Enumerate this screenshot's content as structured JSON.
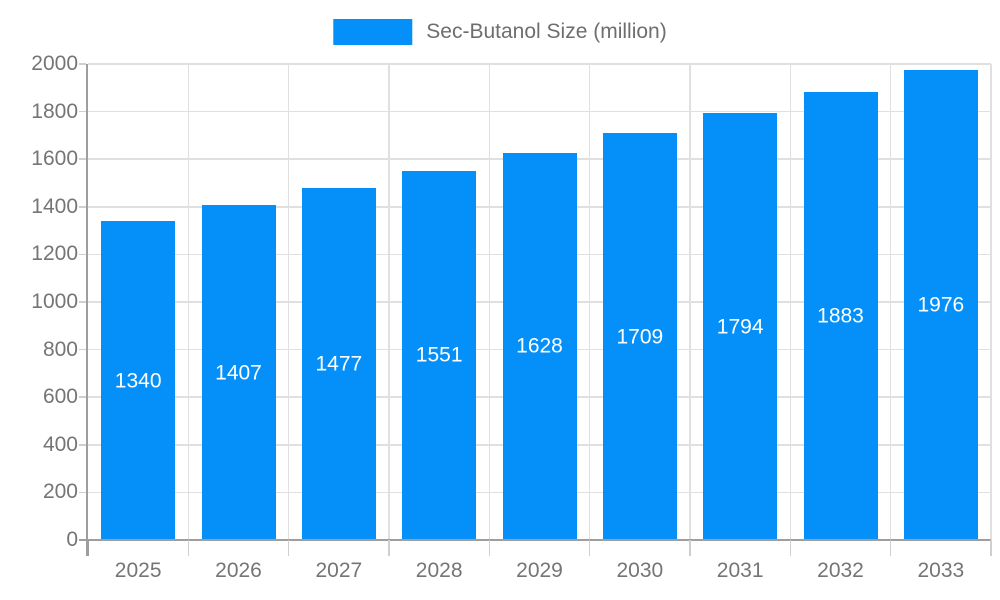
{
  "legend": {
    "label": "Sec-Butanol Size (million)"
  },
  "colors": {
    "bar": "#0490F8",
    "bar_label": "#ffffff",
    "grid": "#e0e0e0",
    "axis": "#9e9e9e",
    "tick": "#cfcfcf",
    "axis_text": "#757575",
    "legend_text": "#6e6e6e",
    "background": "#ffffff"
  },
  "chart_data": {
    "type": "bar",
    "title": "",
    "legend": "Sec-Butanol Size (million)",
    "legend_position": "top-center",
    "categories": [
      "2025",
      "2026",
      "2027",
      "2028",
      "2029",
      "2030",
      "2031",
      "2032",
      "2033"
    ],
    "series": [
      {
        "name": "Sec-Butanol Size (million)",
        "values": [
          1340,
          1407,
          1477,
          1551,
          1628,
          1709,
          1794,
          1883,
          1976
        ]
      }
    ],
    "bar_value_labels_shown": true,
    "bar_value_label_position": "inside-center",
    "xlabel": "",
    "ylabel": "",
    "ylim": [
      0,
      2000
    ],
    "ytick_step": 200,
    "grid": true,
    "grid_vertical": true
  }
}
